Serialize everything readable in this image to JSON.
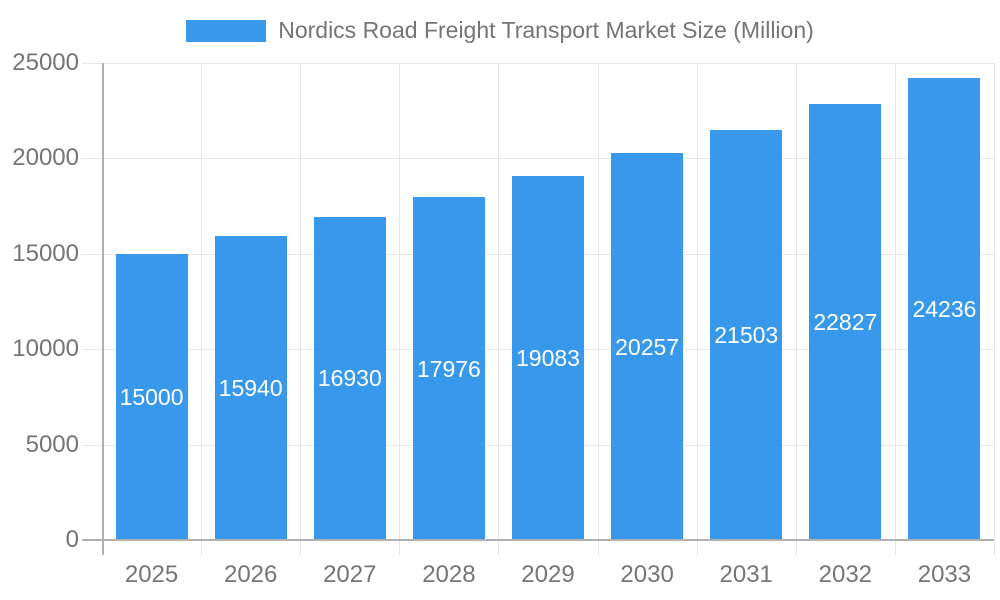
{
  "chart_data": {
    "type": "bar",
    "title": "Nordics Road Freight Transport Market Size (Million)",
    "legend": {
      "position": "top",
      "label": "Nordics Road Freight Transport Market Size (Million)"
    },
    "categories": [
      "2025",
      "2026",
      "2027",
      "2028",
      "2029",
      "2030",
      "2031",
      "2032",
      "2033"
    ],
    "values": [
      15000,
      15940,
      16930,
      17976,
      19083,
      20257,
      21503,
      22827,
      24236
    ],
    "value_labels": [
      "15000",
      "15940",
      "16930",
      "17976",
      "19083",
      "20257",
      "21503",
      "22827",
      "24236"
    ],
    "xlabel": "",
    "ylabel": "",
    "ylim": [
      0,
      25000
    ],
    "ytick_step": 5000,
    "ytick_labels": [
      "0",
      "5000",
      "10000",
      "15000",
      "20000",
      "25000"
    ],
    "grid": true
  },
  "colors": {
    "bar": "#3899ec",
    "grid": "#e6e6e6",
    "axis": "#b0b0b0",
    "tick_text": "#757575",
    "value_label_text": "#ffffff",
    "background": "#ffffff"
  }
}
